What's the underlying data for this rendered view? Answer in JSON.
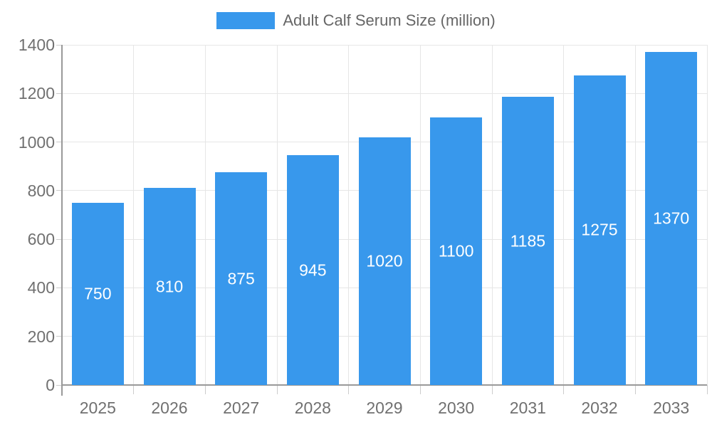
{
  "legend": {
    "label": "Adult Calf Serum Size (million)"
  },
  "colors": {
    "bar": "#3898EC",
    "grid": "#E6E6E6",
    "axis": "#999999",
    "tick": "#CCCCCC",
    "axis_text": "#707070",
    "legend_text": "#666666",
    "value_label": "#FFFFFF",
    "background": "#FFFFFF"
  },
  "chart_data": {
    "type": "bar",
    "title": "Adult Calf Serum Size (million)",
    "categories": [
      "2025",
      "2026",
      "2027",
      "2028",
      "2029",
      "2030",
      "2031",
      "2032",
      "2033"
    ],
    "values": [
      750,
      810,
      875,
      945,
      1020,
      1100,
      1185,
      1275,
      1370
    ],
    "xlabel": "",
    "ylabel": "",
    "ylim": [
      0,
      1400
    ],
    "y_ticks": [
      0,
      200,
      400,
      600,
      800,
      1000,
      1200,
      1400
    ],
    "grid": true,
    "legend_position": "top",
    "bar_value_labels": "inside-center"
  }
}
